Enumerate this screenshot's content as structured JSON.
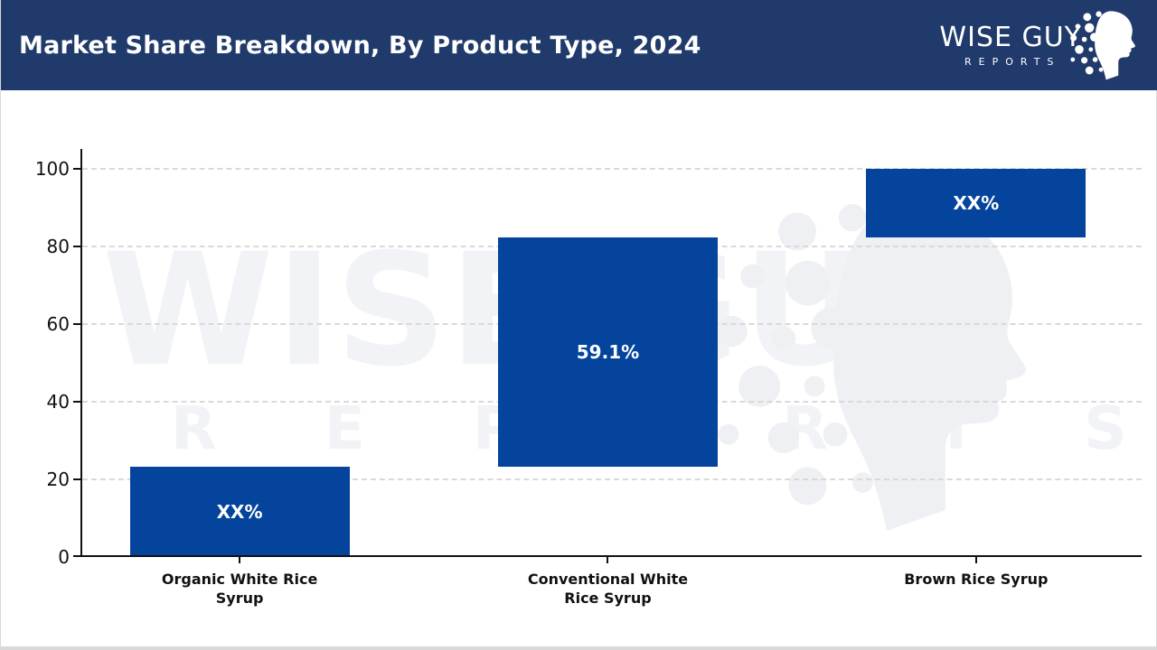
{
  "header": {
    "title": "Market Share Breakdown, By Product Type, 2024",
    "logo": {
      "line1": "WISE GUY",
      "line2": "REPORTS"
    }
  },
  "watermark": {
    "line1": "WISE GUY",
    "line2": "R E P O R T S"
  },
  "colors": {
    "header_bg": "#203a6b",
    "bar_fill": "#05449c",
    "bar_label_text": "#ffffff",
    "gridline": "#d9d9d9",
    "axis_text": "#111111",
    "watermark": "#f2f3f6"
  },
  "chart_data": {
    "type": "bar",
    "subtype": "stacked-waterfall-percentage",
    "title": "Market Share Breakdown, By Product Type, 2024",
    "xlabel": "",
    "ylabel": "",
    "ylim": [
      0,
      100
    ],
    "yticks": [
      0,
      20,
      40,
      60,
      80,
      100
    ],
    "grid": "horizontal dashed",
    "legend": "none",
    "categories": [
      "Organic White Rice Syrup",
      "Conventional White Rice Syrup",
      "Brown Rice Syrup"
    ],
    "category_label_lines": [
      [
        "Organic White Rice",
        "Syrup"
      ],
      [
        "Conventional White",
        "Rice Syrup"
      ],
      [
        "Brown Rice Syrup"
      ]
    ],
    "bars": [
      {
        "category": "Organic White Rice Syrup",
        "label": "XX%",
        "span_start": 0,
        "span_end": 23.2
      },
      {
        "category": "Conventional White Rice Syrup",
        "label": "59.1%",
        "span_start": 23.2,
        "span_end": 82.3
      },
      {
        "category": "Brown Rice Syrup",
        "label": "XX%",
        "span_start": 82.3,
        "span_end": 100
      }
    ]
  }
}
